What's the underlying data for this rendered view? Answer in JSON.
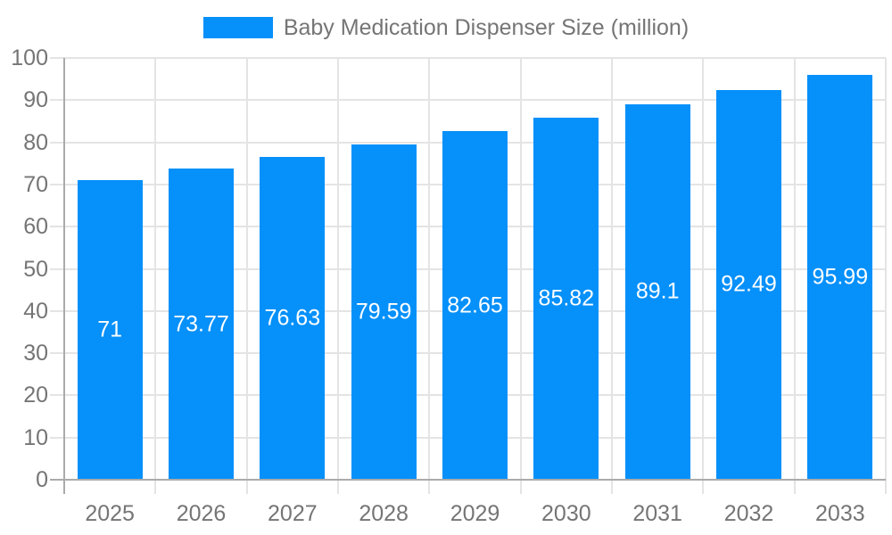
{
  "legend": {
    "label": "Baby Medication Dispenser Size (million)"
  },
  "colors": {
    "bar": "#0590fa",
    "grid": "#e4e4e4",
    "axis": "#ababab",
    "text": "#757575",
    "bar_label": "#ffffff",
    "background": "#ffffff"
  },
  "chart_data": {
    "type": "bar",
    "title": "Baby Medication Dispenser Size (million)",
    "categories": [
      "2025",
      "2026",
      "2027",
      "2028",
      "2029",
      "2030",
      "2031",
      "2032",
      "2033"
    ],
    "values": [
      71,
      73.77,
      76.63,
      79.59,
      82.65,
      85.82,
      89.1,
      92.49,
      95.99
    ],
    "value_labels": [
      "71",
      "73.77",
      "76.63",
      "79.59",
      "82.65",
      "85.82",
      "89.1",
      "92.49",
      "95.99"
    ],
    "xlabel": "",
    "ylabel": "",
    "ylim": [
      0,
      100
    ],
    "yticks": [
      0,
      10,
      20,
      30,
      40,
      50,
      60,
      70,
      80,
      90,
      100
    ],
    "grid": true,
    "legend_position": "top",
    "value_label_position": "center-of-bar"
  }
}
